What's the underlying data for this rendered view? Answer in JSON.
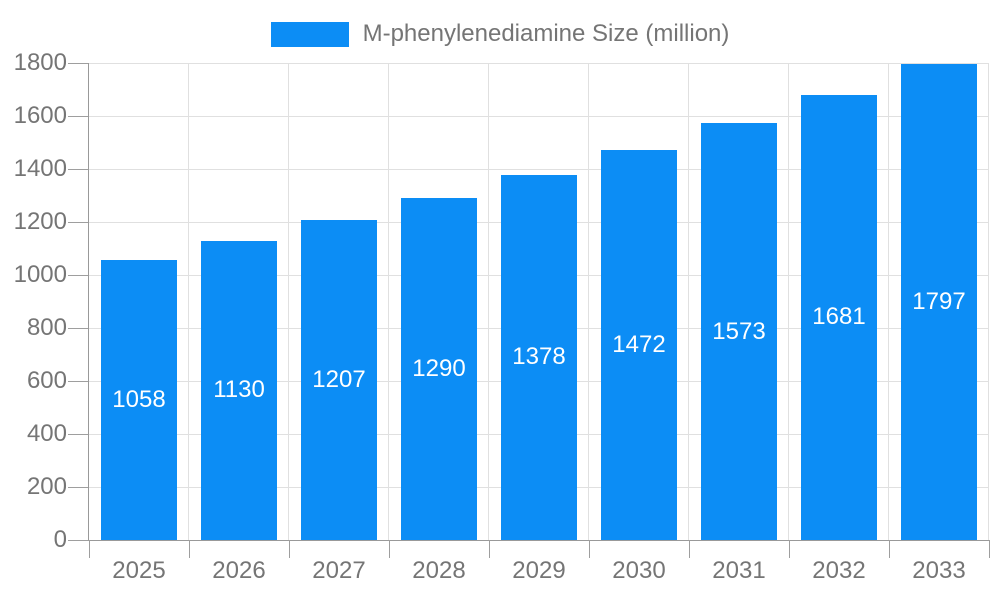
{
  "legend": {
    "label": "M-phenylenediamine Size (million)"
  },
  "chart_data": {
    "type": "bar",
    "categories": [
      "2025",
      "2026",
      "2027",
      "2028",
      "2029",
      "2030",
      "2031",
      "2032",
      "2033"
    ],
    "series": [
      {
        "name": "M-phenylenediamine Size (million)",
        "values": [
          1058,
          1130,
          1207,
          1290,
          1378,
          1472,
          1573,
          1681,
          1797
        ]
      }
    ],
    "legend_entries": [
      "M-phenylenediamine Size (million)"
    ],
    "legend_position": "top-center",
    "ylim": [
      0,
      1800
    ],
    "ytick_step": 200,
    "ytick_labels": [
      "0",
      "200",
      "400",
      "600",
      "800",
      "1000",
      "1200",
      "1400",
      "1600",
      "1800"
    ],
    "grid": true,
    "bar_value_labels_shown": true,
    "colors": {
      "bar": "#0C8DF5",
      "bar_label_text": "#FFFFFF",
      "axis_text": "#757575",
      "axis_line": "#999999",
      "tick": "#9E9E9E",
      "gridline": "#E0E0E0",
      "background": "#FFFFFF"
    }
  }
}
